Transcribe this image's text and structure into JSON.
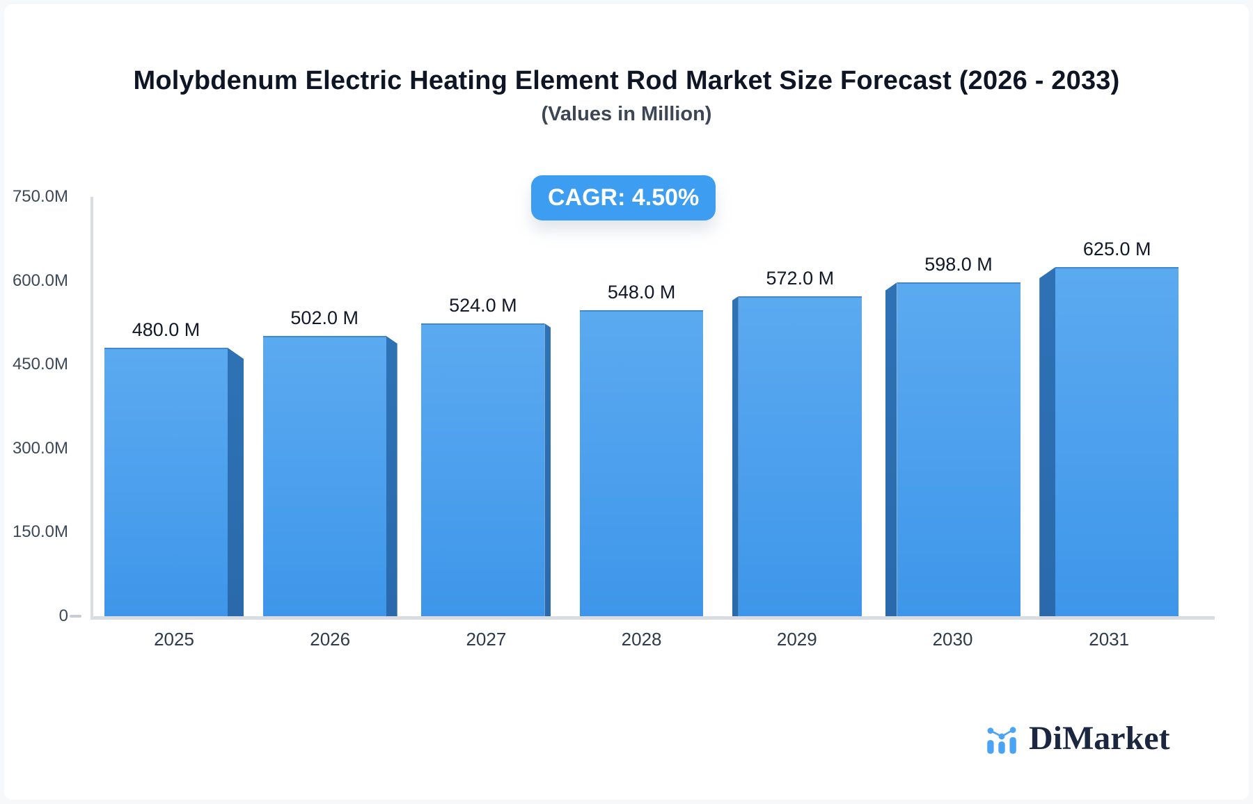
{
  "header": {
    "title": "Molybdenum Electric Heating Element Rod Market Size Forecast (2026 - 2033)",
    "subtitle": "(Values in Million)"
  },
  "badge": {
    "label": "CAGR: 4.50%"
  },
  "chart_data": {
    "type": "bar",
    "title": "Molybdenum Electric Heating Element Rod Market Size Forecast (2026 - 2033)",
    "subtitle": "(Values in Million)",
    "cagr": "4.50%",
    "categories": [
      "2025",
      "2026",
      "2027",
      "2028",
      "2029",
      "2030",
      "2031"
    ],
    "values": [
      480.0,
      502.0,
      524.0,
      548.0,
      572.0,
      598.0,
      625.0
    ],
    "value_labels": [
      "480.0 M",
      "502.0 M",
      "524.0 M",
      "548.0 M",
      "572.0 M",
      "598.0 M",
      "625.0 M"
    ],
    "y_ticks": [
      {
        "value": 750,
        "label": "750.0M"
      },
      {
        "value": 600,
        "label": "600.0M"
      },
      {
        "value": 450,
        "label": "450.0M"
      },
      {
        "value": 300,
        "label": "300.0M"
      },
      {
        "value": 150,
        "label": "150.0M"
      },
      {
        "value": 0,
        "label": "0"
      }
    ],
    "ylim": [
      0,
      750
    ],
    "grid": false,
    "legend": false,
    "bar_style": "3d-perspective"
  },
  "logo": {
    "text": "DiMarket",
    "icon": "mini-bar-chart-icon"
  },
  "colors": {
    "bar_face_top": "#5BAAF0",
    "bar_face_bottom": "#3E96EA",
    "bar_side": "#2E72B5",
    "badge_bg": "#3D9DF1",
    "badge_text": "#FFFFFF",
    "axis_line": "#D9DDE3",
    "title_text": "#0E1524",
    "subtitle_text": "#3C4654",
    "axis_label": "#3E4957",
    "value_label": "#111827",
    "logo_blue": "#4AA3F3",
    "logo_navy": "#1B2740",
    "page_bg": "#F7F8FA",
    "card_bg": "#FFFFFF"
  }
}
